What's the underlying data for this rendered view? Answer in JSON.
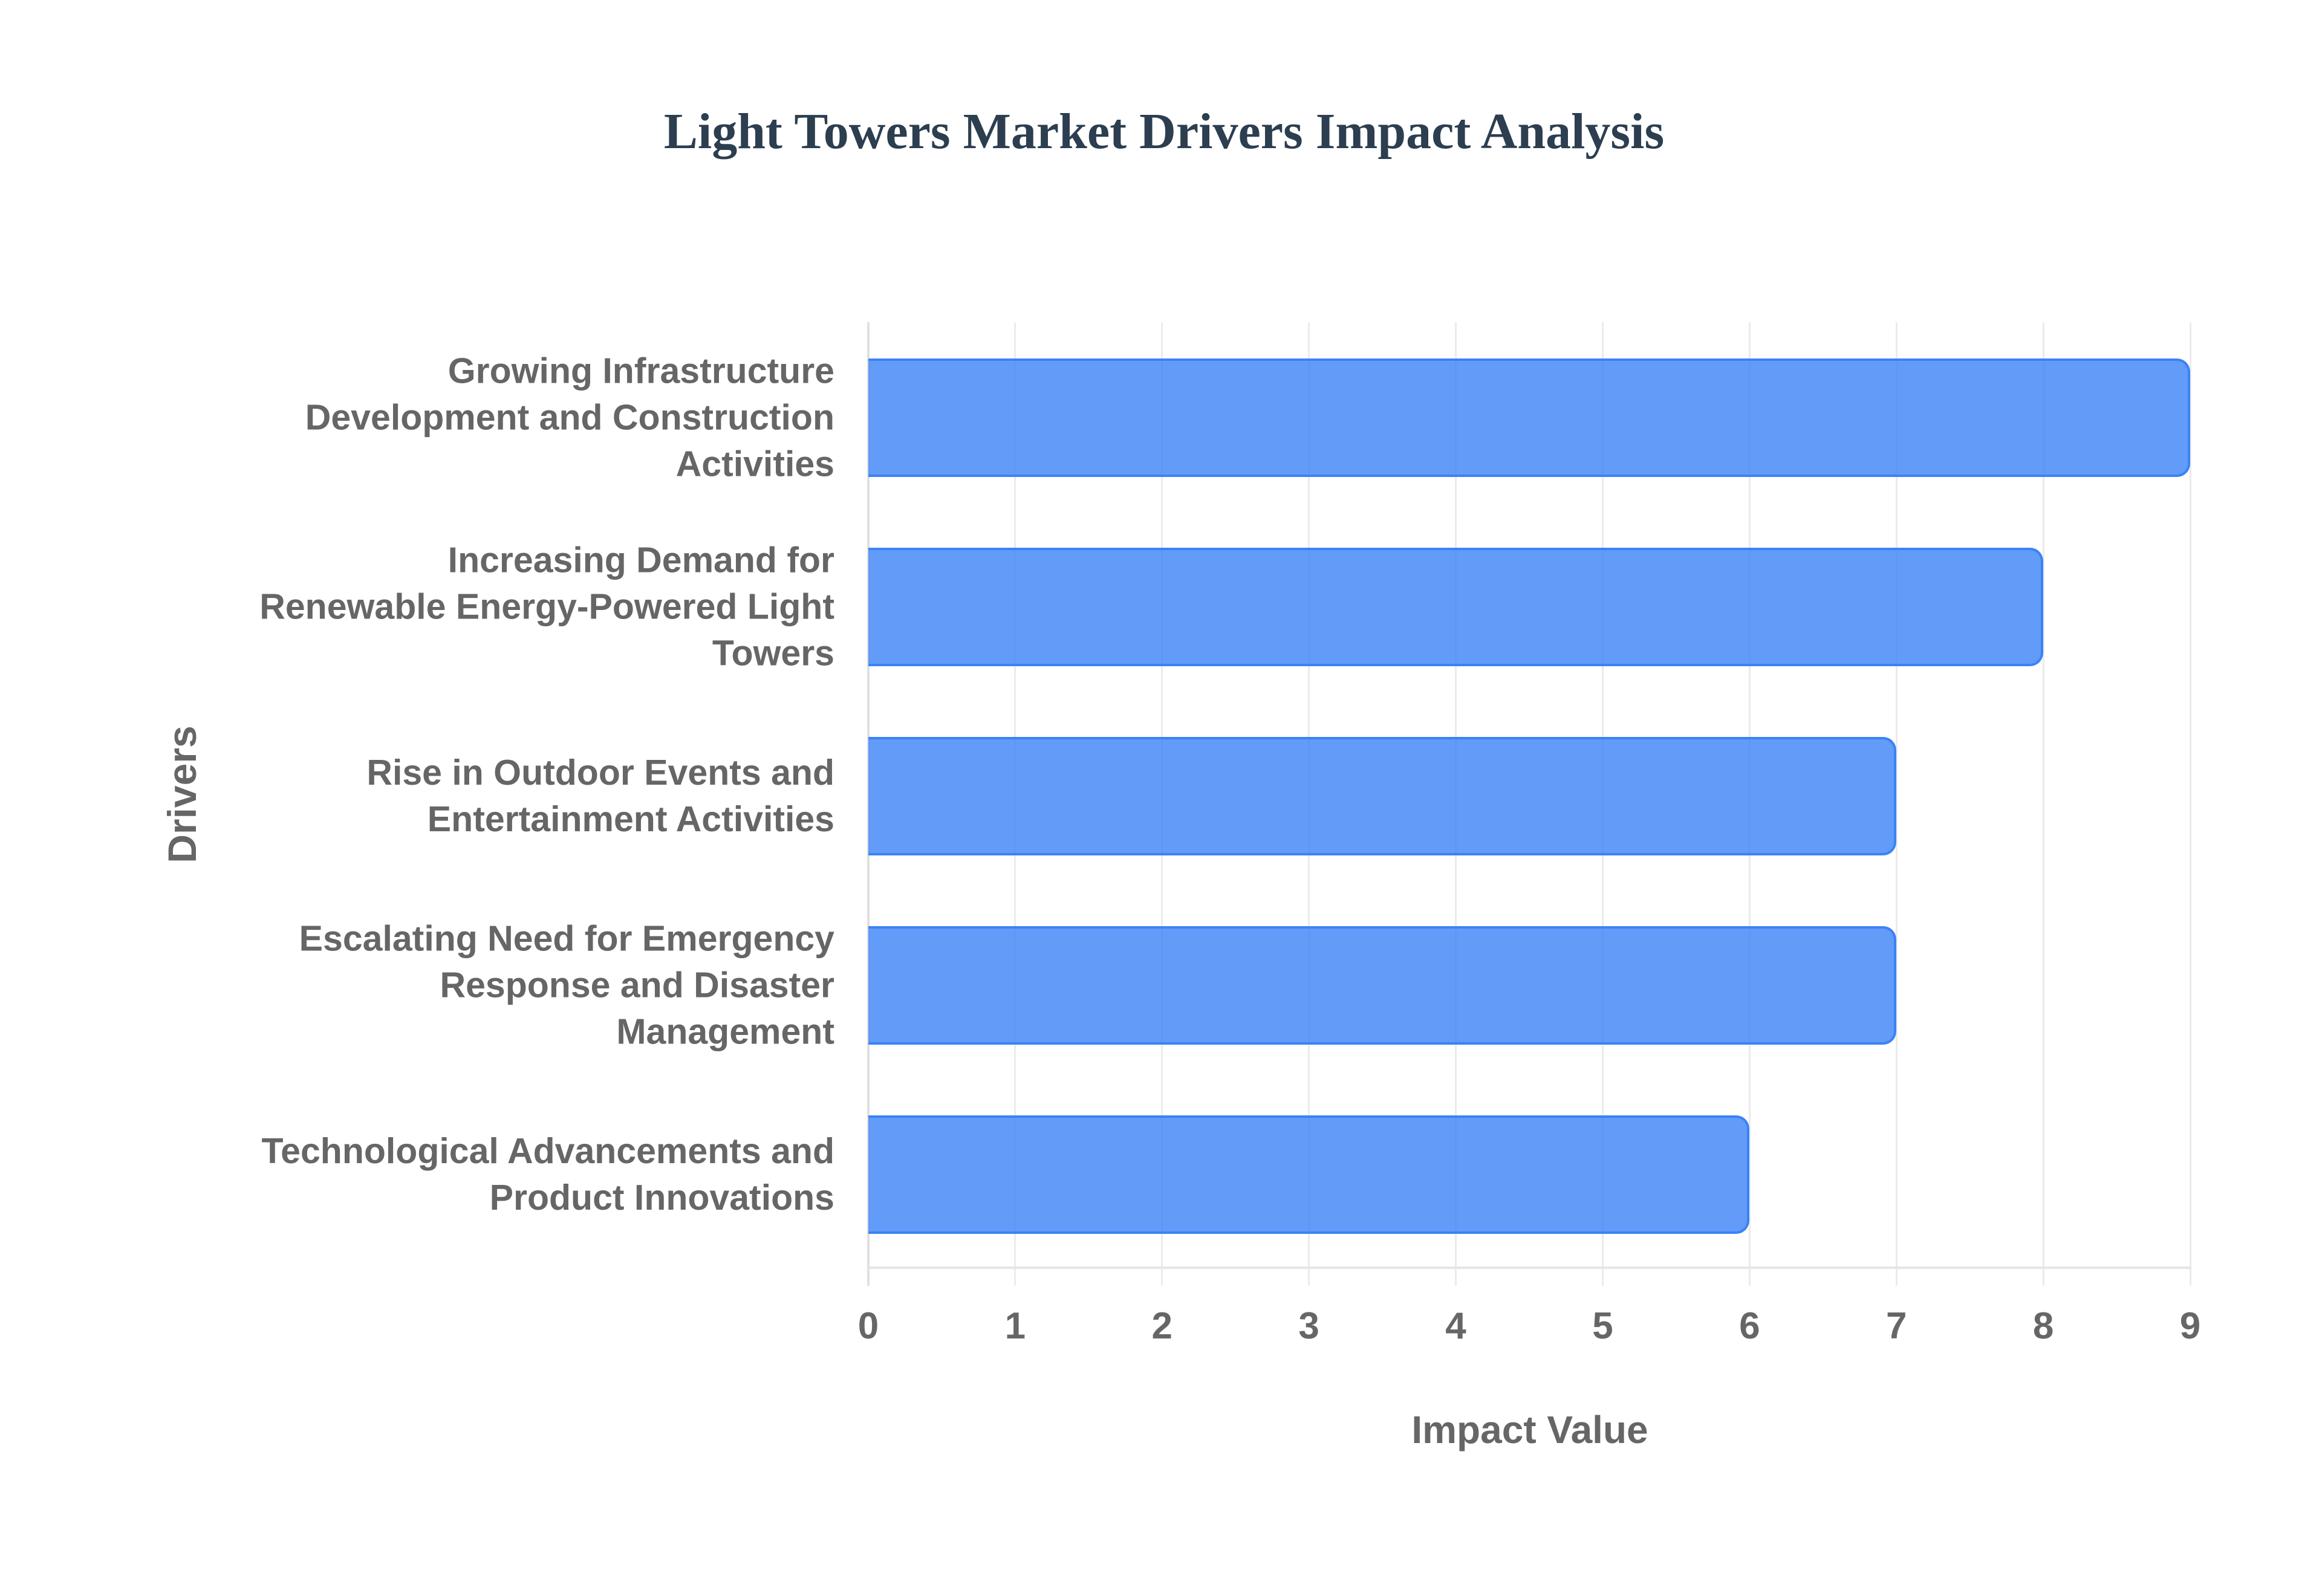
{
  "title": "Light Towers Market Drivers Impact Analysis",
  "colors": {
    "title": "#2c3e50",
    "bar_fill": "rgba(59,130,246,0.8)",
    "bar_border": "#3b82f6",
    "axis_text": "#666666",
    "grid": "#ebebeb"
  },
  "axes": {
    "x_title": "Impact Value",
    "y_title": "Drivers",
    "x_ticks": [
      "0",
      "1",
      "2",
      "3",
      "4",
      "5",
      "6",
      "7",
      "8",
      "9"
    ]
  },
  "categories": [
    {
      "label": "Growing Infrastructure Development and Construction Activities",
      "lines": [
        "Growing Infrastructure",
        "Development and Construction",
        "Activities"
      ],
      "value": 9
    },
    {
      "label": "Increasing Demand for Renewable Energy-Powered Light Towers",
      "lines": [
        "Increasing Demand for",
        "Renewable Energy-Powered Light",
        "Towers"
      ],
      "value": 8
    },
    {
      "label": "Rise in Outdoor Events and Entertainment Activities",
      "lines": [
        "Rise in Outdoor Events and",
        "Entertainment Activities"
      ],
      "value": 7
    },
    {
      "label": "Escalating Need for Emergency Response and Disaster Management",
      "lines": [
        "Escalating Need for Emergency",
        "Response and Disaster",
        "Management"
      ],
      "value": 7
    },
    {
      "label": "Technological Advancements and Product Innovations",
      "lines": [
        "Technological Advancements and",
        "Product Innovations"
      ],
      "value": 6
    }
  ],
  "chart_data": {
    "type": "bar",
    "orientation": "horizontal",
    "title": "Light Towers Market Drivers Impact Analysis",
    "xlabel": "Impact Value",
    "ylabel": "Drivers",
    "categories": [
      "Growing Infrastructure Development and Construction Activities",
      "Increasing Demand for Renewable Energy-Powered Light Towers",
      "Rise in Outdoor Events and Entertainment Activities",
      "Escalating Need for Emergency Response and Disaster Management",
      "Technological Advancements and Product Innovations"
    ],
    "values": [
      9,
      8,
      7,
      7,
      6
    ],
    "xlim": [
      0,
      9
    ],
    "x_ticks": [
      0,
      1,
      2,
      3,
      4,
      5,
      6,
      7,
      8,
      9
    ],
    "grid": true,
    "legend": "none"
  }
}
